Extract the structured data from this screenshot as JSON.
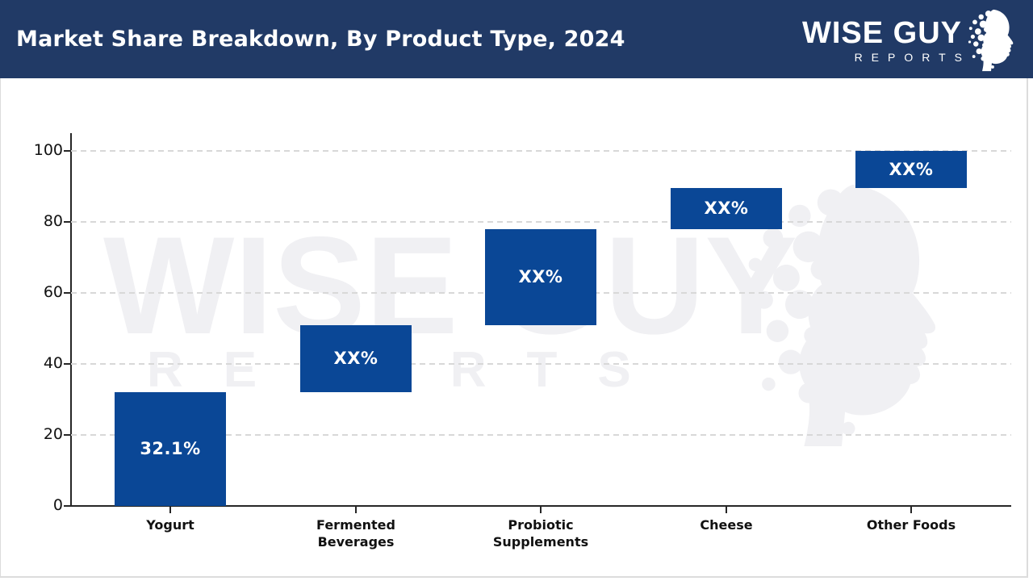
{
  "header": {
    "title": "Market Share Breakdown, By Product Type, 2024",
    "logo": {
      "line1": "WISE GUY",
      "line2": "REPORTS"
    }
  },
  "watermark": {
    "line1": "WISE GUY",
    "line2": "REPORTS"
  },
  "colors": {
    "header_bg": "#213a66",
    "bar": "#0a4796",
    "grid": "#d8d8d8",
    "axis": "#262626",
    "bar_label": "#ffffff",
    "watermark": "#f0f0f3"
  },
  "chart_data": {
    "type": "bar",
    "subtype": "waterfall",
    "title": "Market Share Breakdown, By Product Type, 2024",
    "xlabel": "",
    "ylabel": "",
    "ylim": [
      0,
      105
    ],
    "y_ticks": [
      0,
      20,
      40,
      60,
      80,
      100
    ],
    "grid": "horizontal dashed",
    "legend": "none",
    "bar_color": "#0a4796",
    "value_label_color": "#ffffff",
    "categories": [
      "Yogurt",
      "Fermented Beverages",
      "Probiotic Supplements",
      "Cheese",
      "Other Foods"
    ],
    "segments": [
      {
        "category": "Yogurt",
        "category_lines": [
          "Yogurt"
        ],
        "start": 0,
        "end": 32.1,
        "label": "32.1%"
      },
      {
        "category": "Fermented Beverages",
        "category_lines": [
          "Fermented",
          "Beverages"
        ],
        "start": 32.1,
        "end": 51,
        "label": "XX%"
      },
      {
        "category": "Probiotic Supplements",
        "category_lines": [
          "Probiotic",
          "Supplements"
        ],
        "start": 51,
        "end": 78,
        "label": "XX%"
      },
      {
        "category": "Cheese",
        "category_lines": [
          "Cheese"
        ],
        "start": 78,
        "end": 89.5,
        "label": "XX%"
      },
      {
        "category": "Other Foods",
        "category_lines": [
          "Other Foods"
        ],
        "start": 89.5,
        "end": 100,
        "label": "XX%"
      }
    ]
  }
}
